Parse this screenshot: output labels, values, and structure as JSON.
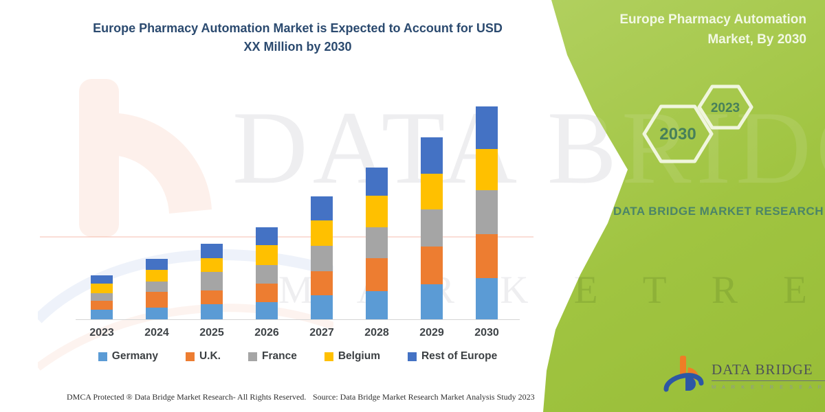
{
  "title": "Europe Pharmacy Automation Market is Expected to Account for USD XX Million by 2030",
  "chart_data": {
    "type": "bar",
    "stacked": true,
    "title": "Europe Pharmacy Automation Market is Expected to Account for USD XX Million by 2030",
    "xlabel": "",
    "ylabel": "",
    "value_axis_visible": false,
    "units_note": "USD XX Million (axis unlabeled; values estimated from bar pixel heights, relative units)",
    "grid": false,
    "legend_position": "bottom",
    "categories": [
      "2023",
      "2024",
      "2025",
      "2026",
      "2027",
      "2028",
      "2029",
      "2030"
    ],
    "series": [
      {
        "name": "Germany",
        "color": "#5B9BD5",
        "values": [
          14,
          17,
          22,
          25,
          35,
          41,
          51,
          60
        ]
      },
      {
        "name": "U.K.",
        "color": "#ED7D31",
        "values": [
          13,
          23,
          20,
          27,
          35,
          48,
          55,
          64
        ]
      },
      {
        "name": "France",
        "color": "#A5A5A5",
        "values": [
          11,
          15,
          27,
          27,
          37,
          45,
          54,
          64
        ]
      },
      {
        "name": "Belgium",
        "color": "#FFC000",
        "values": [
          14,
          17,
          20,
          29,
          37,
          46,
          52,
          60
        ]
      },
      {
        "name": "Rest of Europe",
        "color": "#4472C4",
        "values": [
          12,
          16,
          21,
          26,
          35,
          41,
          53,
          62
        ]
      }
    ],
    "totals": [
      64,
      88,
      110,
      134,
      179,
      221,
      265,
      310
    ]
  },
  "side_panel": {
    "heading": "Europe Pharmacy Automation Market, By 2030",
    "hexagon_labels": [
      "2030",
      "2023"
    ],
    "brand_caption": "DATA BRIDGE MARKET RESEARCH",
    "colors": {
      "panel_green": "#a0c441",
      "hexagon_stroke": "#f0f6dd",
      "hexagon_text": "#47805a",
      "caption_text": "#4b8468"
    }
  },
  "logo": {
    "name": "DATA BRIDGE",
    "tagline": "M A R K E T   R E S E A R C H"
  },
  "watermark": {
    "line1": "DATA BRIDGE",
    "line2": "M A R K E T   R E S E A R C H"
  },
  "footer": {
    "dmca": "DMCA Protected ® Data Bridge Market Research-  All Rights Reserved.",
    "source": "Source: Data Bridge Market Research  Market Analysis Study 2023"
  }
}
